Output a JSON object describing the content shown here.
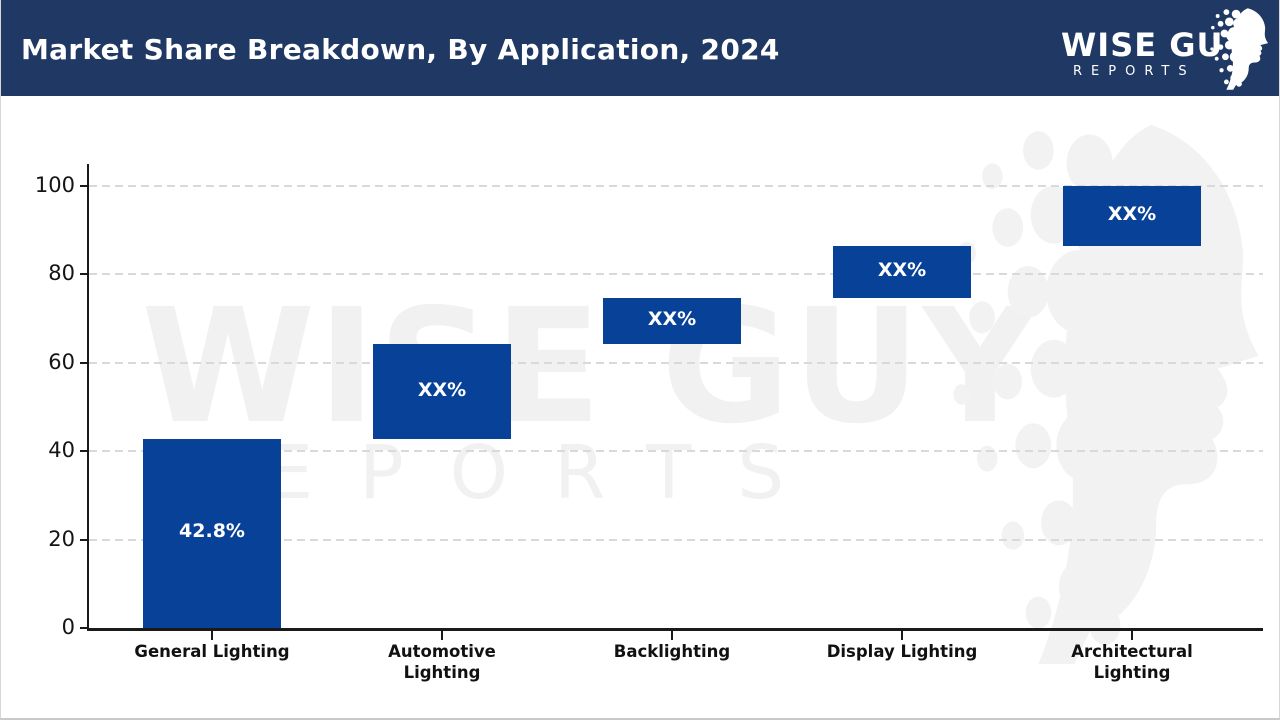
{
  "header": {
    "title": "Market Share Breakdown, By Application, 2024",
    "bg_color": "#203864",
    "logo": {
      "line1": "WISE GUY",
      "line2": "REPORTS"
    }
  },
  "watermark": {
    "line1": "WISE GUY",
    "line2": "REPORTS"
  },
  "chart_data": {
    "type": "bar",
    "subtype": "waterfall",
    "title": "Market Share Breakdown, By Application, 2024",
    "categories": [
      "General Lighting",
      "Automotive\nLighting",
      "Backlighting",
      "Display Lighting",
      "Architectural\nLighting"
    ],
    "series": [
      {
        "name": "Market Share (%)",
        "segments": [
          {
            "category": "General Lighting",
            "start": 0,
            "end": 42.8,
            "label": "42.8%"
          },
          {
            "category": "Automotive Lighting",
            "start": 42.8,
            "end": 64.2,
            "label": "XX%"
          },
          {
            "category": "Backlighting",
            "start": 64.2,
            "end": 74.7,
            "label": "XX%"
          },
          {
            "category": "Display Lighting",
            "start": 74.7,
            "end": 86.4,
            "label": "XX%"
          },
          {
            "category": "Architectural Lighting",
            "start": 86.4,
            "end": 100,
            "label": "XX%"
          }
        ]
      }
    ],
    "y_ticks": [
      0,
      20,
      40,
      60,
      80,
      100
    ],
    "ylim": [
      0,
      105
    ],
    "xlabel": "",
    "ylabel": "",
    "grid": "horizontal-dashed",
    "legend": "none",
    "bar_color": "#084298",
    "bar_label_color": "#ffffff",
    "gridline_color": "#d9d9d9"
  }
}
